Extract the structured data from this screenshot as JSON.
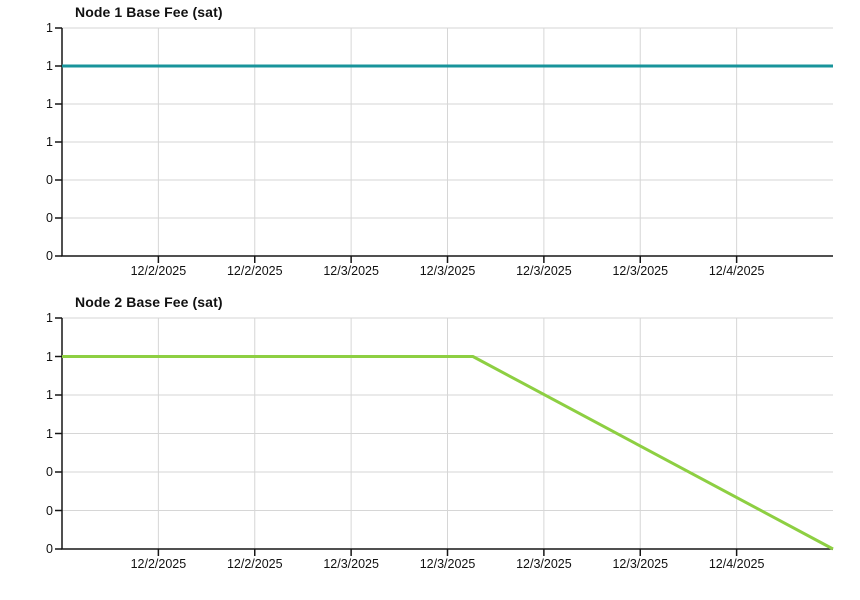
{
  "style": {
    "background": "#ffffff",
    "grid_color": "#d6d6d6",
    "axis_color": "#161616",
    "text_color": "#111111"
  },
  "chart_data": [
    {
      "type": "line",
      "title": "Node 1 Base Fee (sat)",
      "xlabel": "",
      "ylabel": "",
      "ylim": [
        0,
        1.2
      ],
      "grid": true,
      "legend": "none",
      "y_tick_values": [
        1.2,
        1.0,
        0.8,
        0.6,
        0.4,
        0.2,
        0
      ],
      "y_tick_labels": [
        "1",
        "1",
        "1",
        "1",
        "0",
        "0",
        "0"
      ],
      "x_tick_labels": [
        "12/2/2025",
        "12/2/2025",
        "12/3/2025",
        "12/3/2025",
        "12/3/2025",
        "12/3/2025",
        "12/4/2025"
      ],
      "series": [
        {
          "name": "Node 1 base fee",
          "color": "#18949b",
          "points": [
            {
              "x_frac": 0.0,
              "y": 1.0
            },
            {
              "x_frac": 1.0,
              "y": 1.0
            }
          ]
        }
      ]
    },
    {
      "type": "line",
      "title": "Node 2 Base Fee (sat)",
      "xlabel": "",
      "ylabel": "",
      "ylim": [
        0,
        1.2
      ],
      "grid": true,
      "legend": "none",
      "y_tick_values": [
        1.2,
        1.0,
        0.8,
        0.6,
        0.4,
        0.2,
        0
      ],
      "y_tick_labels": [
        "1",
        "1",
        "1",
        "1",
        "0",
        "0",
        "0"
      ],
      "x_tick_labels": [
        "12/2/2025",
        "12/2/2025",
        "12/3/2025",
        "12/3/2025",
        "12/3/2025",
        "12/3/2025",
        "12/4/2025"
      ],
      "series": [
        {
          "name": "Node 2 base fee",
          "color": "#8dcf42",
          "points": [
            {
              "x_frac": 0.0,
              "y": 1.0
            },
            {
              "x_frac": 0.533,
              "y": 1.0
            },
            {
              "x_frac": 1.0,
              "y": 0.0
            }
          ]
        }
      ]
    }
  ]
}
